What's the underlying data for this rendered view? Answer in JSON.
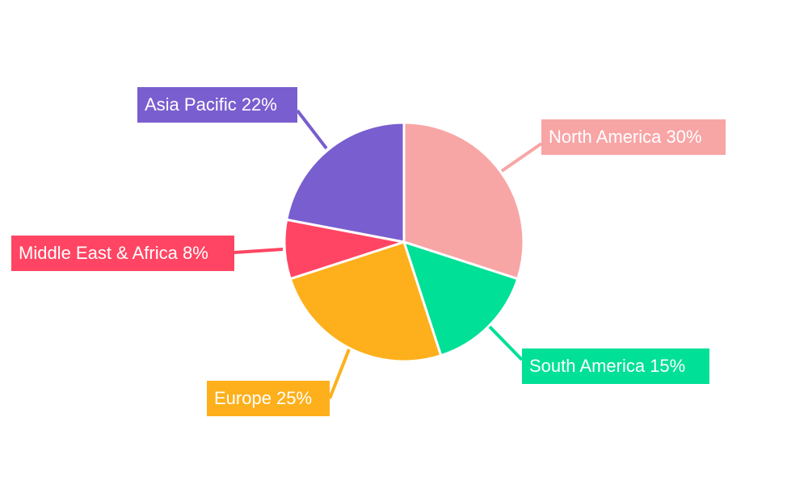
{
  "chart_data": {
    "type": "pie",
    "start": "top",
    "direction": "clockwise",
    "slices": [
      {
        "label": "North America 30%",
        "name": "North America",
        "value": 30,
        "color": "#f8a5a6"
      },
      {
        "label": "South America 15%",
        "name": "South America",
        "value": 15,
        "color": "#00e096"
      },
      {
        "label": "Europe 25%",
        "name": "Europe",
        "value": 25,
        "color": "#fdb01c"
      },
      {
        "label": "Middle East & Africa 8%",
        "name": "Middle East & Africa",
        "value": 8,
        "color": "#ff4563"
      },
      {
        "label": "Asia Pacific 22%",
        "name": "Asia Pacific",
        "value": 22,
        "color": "#795ecf"
      }
    ]
  }
}
